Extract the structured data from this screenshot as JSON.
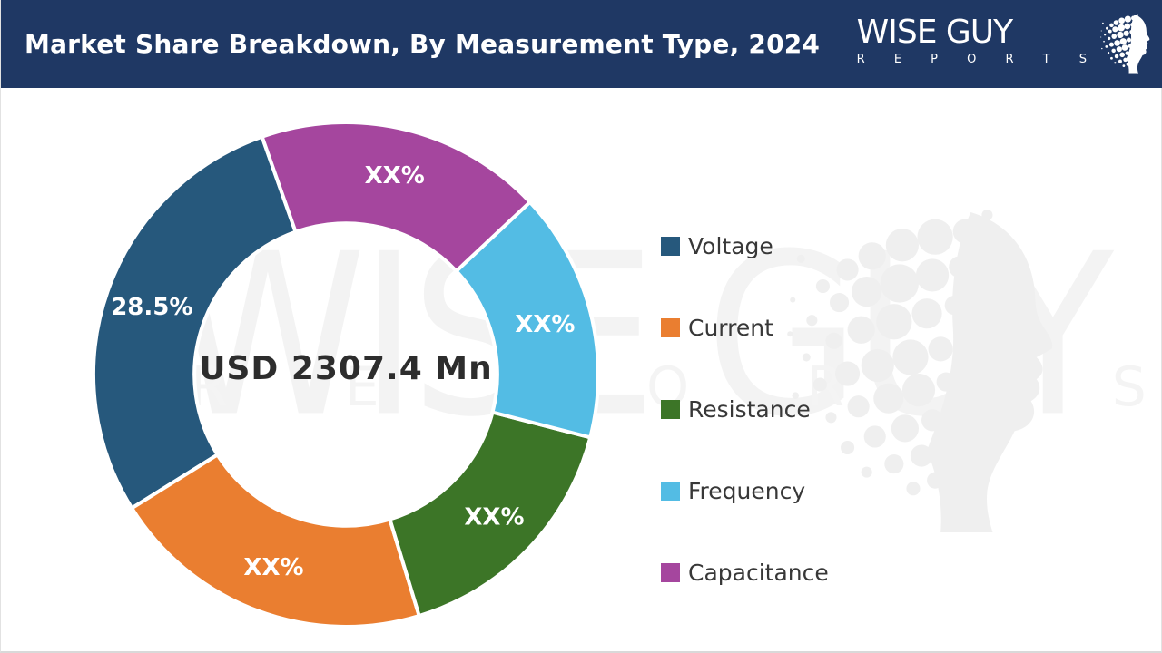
{
  "header": {
    "title": "Market Share Breakdown, By Measurement Type, 2024",
    "bg_color": "#1F3864",
    "logo": {
      "name": "WISE GUY",
      "sub": "R E P O R T S",
      "icon": "dotted-head-profile-icon"
    }
  },
  "watermark": {
    "name": "WISE GUY",
    "sub": "R E P O R T S",
    "icon": "dotted-head-profile-icon"
  },
  "chart_data": {
    "type": "pie",
    "subtype": "donut",
    "title": "Market Share Breakdown, By Measurement Type, 2024",
    "center_label": "USD 2307.4 Mn",
    "categories": [
      "Voltage",
      "Current",
      "Resistance",
      "Frequency",
      "Capacitance"
    ],
    "values_pct": [
      28.5,
      20.8,
      16.3,
      16.0,
      18.4
    ],
    "slice_labels": [
      "28.5%",
      "XX%",
      "XX%",
      "XX%",
      "XX%"
    ],
    "colors": [
      "#26587C",
      "#EA7E30",
      "#3C7527",
      "#53BCE4",
      "#A5469E"
    ],
    "start_angle_deg": 109.4,
    "direction": "counterclockwise",
    "inner_radius_ratio": 0.6,
    "legend_position": "right",
    "label_color": "#ffffff"
  },
  "legend": {
    "items": [
      {
        "label": "Voltage",
        "color": "#26587C"
      },
      {
        "label": "Current",
        "color": "#EA7E30"
      },
      {
        "label": "Resistance",
        "color": "#3C7527"
      },
      {
        "label": "Frequency",
        "color": "#53BCE4"
      },
      {
        "label": "Capacitance",
        "color": "#A5469E"
      }
    ]
  }
}
